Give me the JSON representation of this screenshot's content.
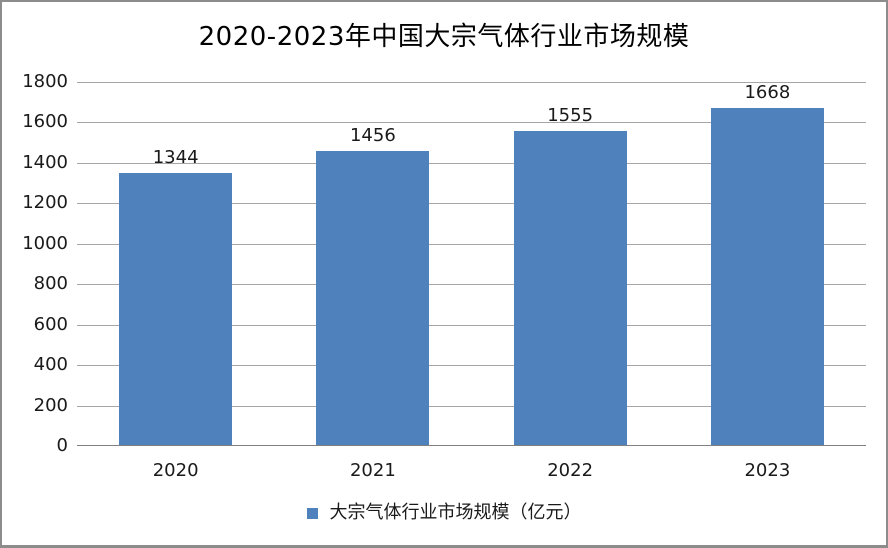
{
  "chart_data": {
    "type": "bar",
    "title": "2020-2023年中国大宗气体行业市场规模",
    "categories": [
      "2020",
      "2021",
      "2022",
      "2023"
    ],
    "values": [
      1344,
      1456,
      1555,
      1668
    ],
    "value_labels": [
      "1344",
      "1456",
      "1555",
      "1668"
    ],
    "ylim": [
      0,
      1800
    ],
    "yticks": [
      0,
      200,
      400,
      600,
      800,
      1000,
      1200,
      1400,
      1600,
      1800
    ],
    "xlabel": "",
    "ylabel": "",
    "grid": true,
    "legend_position": "bottom",
    "legend": [
      "大宗气体行业市场规模（亿元）"
    ],
    "colors": {
      "bar": "#4F81BD",
      "gridline": "#A6A6A6",
      "axis_line": "#808080",
      "title_text": "#000000",
      "label_text": "#1A1A1A",
      "frame_border": "#8C8C8C",
      "background": "#FFFFFF"
    }
  }
}
